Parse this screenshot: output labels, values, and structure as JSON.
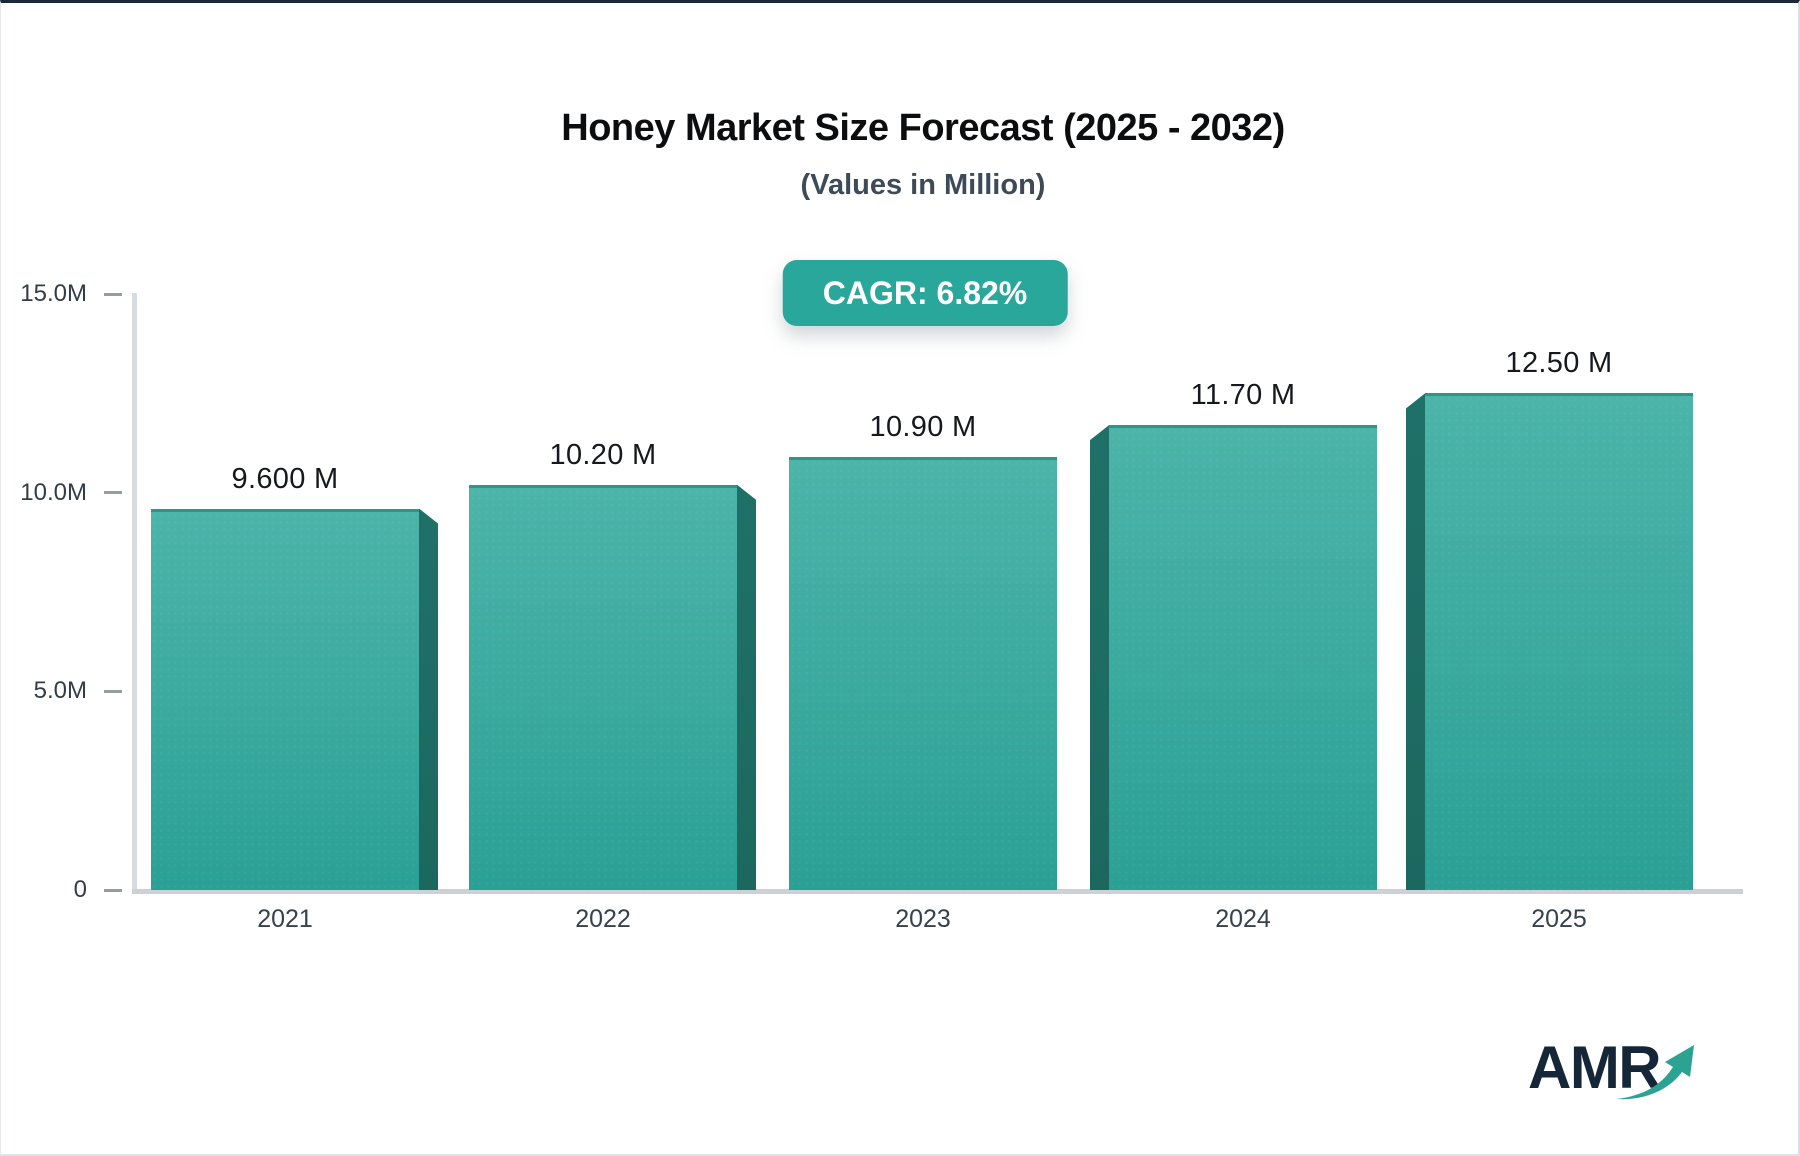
{
  "header": {
    "title": "Honey Market Size Forecast (2025 - 2032)",
    "subtitle": "(Values in Million)",
    "cagr_badge": "CAGR: 6.82%"
  },
  "chart_data": {
    "type": "bar",
    "title": "Honey Market Size Forecast (2025 - 2032)",
    "subtitle": "(Values in Million)",
    "annotation": "CAGR: 6.82%",
    "categories": [
      "2021",
      "2022",
      "2023",
      "2024",
      "2025"
    ],
    "values": [
      9.6,
      10.2,
      10.9,
      11.7,
      12.5
    ],
    "value_labels": [
      "9.600 M",
      "10.20 M",
      "10.90 M",
      "11.70 M",
      "12.50 M"
    ],
    "unit": "Million",
    "ylim": [
      0,
      15
    ],
    "yticks": [
      {
        "value": 15,
        "label": "15.0M"
      },
      {
        "value": 10,
        "label": "10.0M"
      },
      {
        "value": 5,
        "label": "5.0M"
      },
      {
        "value": 0,
        "label": "0"
      }
    ],
    "grid": false,
    "legend": false,
    "colors": {
      "bar_face_top": "#4cb4a9",
      "bar_face_bottom": "#2ba095",
      "bar_face_edge": "#2d968b",
      "bar_side": "#1f7168",
      "badge_bg": "#2aa79b",
      "badge_text": "#ffffff",
      "axis_line": "#d7dade",
      "tick": "#959ca4",
      "axis_label": "#333d48",
      "value_label": "#15181c",
      "title": "#0c0d0e",
      "subtitle": "#3d4a58"
    }
  },
  "branding": {
    "logo_text": "AMR",
    "logo_arrow_icon": "upward-trend-arrow",
    "logo_text_color": "#152638",
    "logo_arrow_color": "#2ca392"
  }
}
